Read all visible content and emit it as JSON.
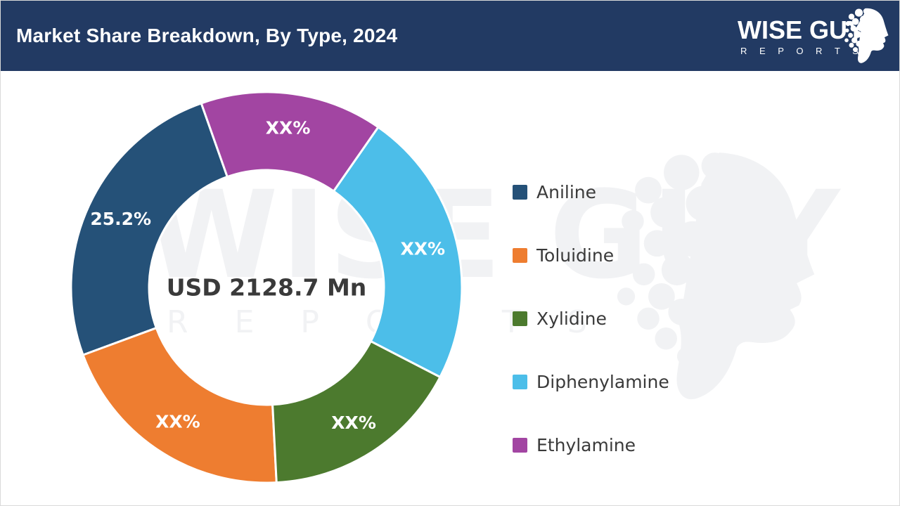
{
  "header": {
    "title": "Market Share Breakdown, By Type, 2024",
    "bg_color": "#223a63",
    "logo": {
      "line1": "WISE GUY",
      "line2": "R E P O R T S"
    }
  },
  "watermark": {
    "line1": "WISE GUY",
    "line2": "REPORTS"
  },
  "chart_data": {
    "type": "pie",
    "subtype": "donut",
    "title": "Market Share Breakdown, By Type, 2024",
    "center_label": "USD 2128.7 Mn",
    "start_angle_deg": 109.5,
    "direction": "counterclockwise",
    "inner_radius_ratio": 0.6,
    "legend_position": "right",
    "segments": [
      {
        "name": "Aniline",
        "value_pct": 25.2,
        "label": "25.2%",
        "color": "#255178"
      },
      {
        "name": "Toluidine",
        "value_pct": 20.2,
        "label": "XX%",
        "color": "#ee7d30"
      },
      {
        "name": "Xylidine",
        "value_pct": 16.6,
        "label": "XX%",
        "color": "#4c7a2e"
      },
      {
        "name": "Diphenylamine",
        "value_pct": 22.9,
        "label": "XX%",
        "color": "#4cbee9"
      },
      {
        "name": "Ethylamine",
        "value_pct": 15.1,
        "label": "XX%",
        "color": "#a245a2"
      }
    ]
  }
}
